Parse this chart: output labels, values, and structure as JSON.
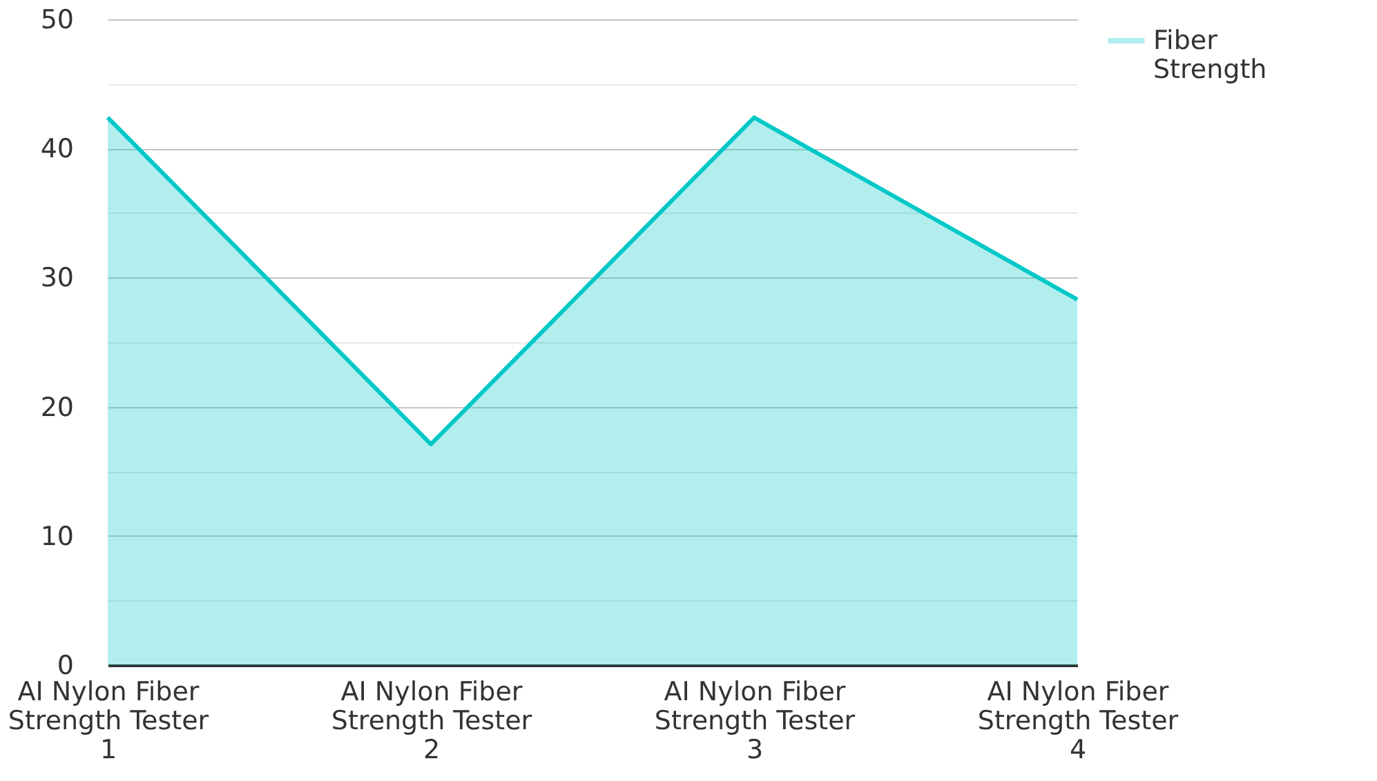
{
  "chart_data": {
    "type": "area",
    "categories": [
      "AI Nylon Fiber Strength Tester 1",
      "AI Nylon Fiber Strength Tester 2",
      "AI Nylon Fiber Strength Tester 3",
      "AI Nylon Fiber Strength Tester 4"
    ],
    "series": [
      {
        "name": "Fiber Strength",
        "color": "#00c8c8",
        "values": [
          42.4,
          17.1,
          42.4,
          28.3
        ]
      }
    ],
    "ylim": [
      0,
      50
    ],
    "yticks": [
      0,
      {
        "value": 5,
        "label": null
      },
      10,
      {
        "value": 15,
        "label": null
      },
      20,
      {
        "value": 25,
        "label": null
      },
      30,
      {
        "value": 35,
        "label": null
      },
      40,
      {
        "value": 45,
        "label": null
      },
      50
    ],
    "grid": "y",
    "legend": "top right",
    "marker": "none",
    "line_style": "solid"
  }
}
